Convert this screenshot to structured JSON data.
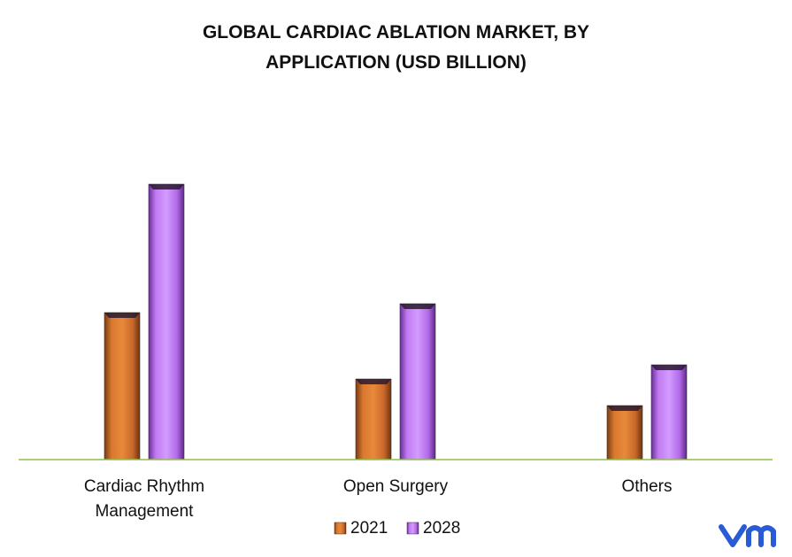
{
  "chart_data": {
    "type": "bar",
    "title": "GLOBAL CARDIAC ABLATION MARKET, BY APPLICATION (USD BILLION)",
    "categories": [
      "Cardiac Rhythm Management",
      "Open Surgery",
      "Others"
    ],
    "series": [
      {
        "name": "2021",
        "color": "#c8682a",
        "values": [
          1.66,
          0.91,
          0.61
        ]
      },
      {
        "name": "2028",
        "color": "#b26ae8",
        "values": [
          3.11,
          1.76,
          1.07
        ]
      }
    ],
    "ylim": [
      0,
      3.5
    ],
    "legend": "bottom"
  }
}
